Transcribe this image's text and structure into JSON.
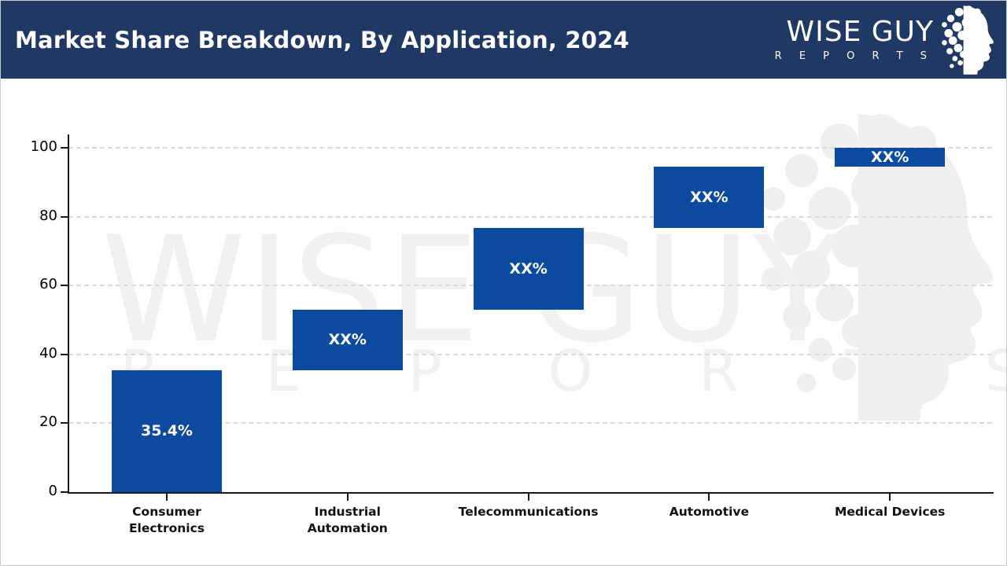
{
  "header": {
    "title": "Market Share Breakdown, By Application, 2024",
    "bg_color": "#203864",
    "logo": {
      "line1": "WISE GUY",
      "line2": "R E P O R T S"
    }
  },
  "watermark": {
    "line1": "WISE GUY",
    "line2": "R E P O R T S"
  },
  "chart_data": {
    "type": "bar",
    "subtype": "waterfall-floating-bars",
    "title": "Market Share Breakdown, By Application, 2024",
    "xlabel": "",
    "ylabel": "",
    "ylim": [
      0,
      100
    ],
    "yticks": [
      0,
      20,
      40,
      60,
      80,
      100
    ],
    "grid": "horizontal dashed",
    "legend": "none",
    "bar_color": "#0b4a9e",
    "bar_label_color": "#ffffff",
    "categories": [
      "Consumer Electronics",
      "Industrial Automation",
      "Telecommunications",
      "Automotive",
      "Medical Devices"
    ],
    "categories_display": [
      [
        "Consumer",
        "Electronics"
      ],
      [
        "Industrial",
        "Automation"
      ],
      [
        "Telecommunications"
      ],
      [
        "Automotive"
      ],
      [
        "Medical Devices"
      ]
    ],
    "bars": [
      {
        "category": "Consumer Electronics",
        "start": 0,
        "end": 35.4,
        "label": "35.4%"
      },
      {
        "category": "Industrial Automation",
        "start": 35.4,
        "end": 53.0,
        "label": "XX%"
      },
      {
        "category": "Telecommunications",
        "start": 53.0,
        "end": 76.6,
        "label": "XX%"
      },
      {
        "category": "Automotive",
        "start": 76.6,
        "end": 94.5,
        "label": "XX%"
      },
      {
        "category": "Medical Devices",
        "start": 94.5,
        "end": 100,
        "label": "XX%"
      }
    ]
  }
}
